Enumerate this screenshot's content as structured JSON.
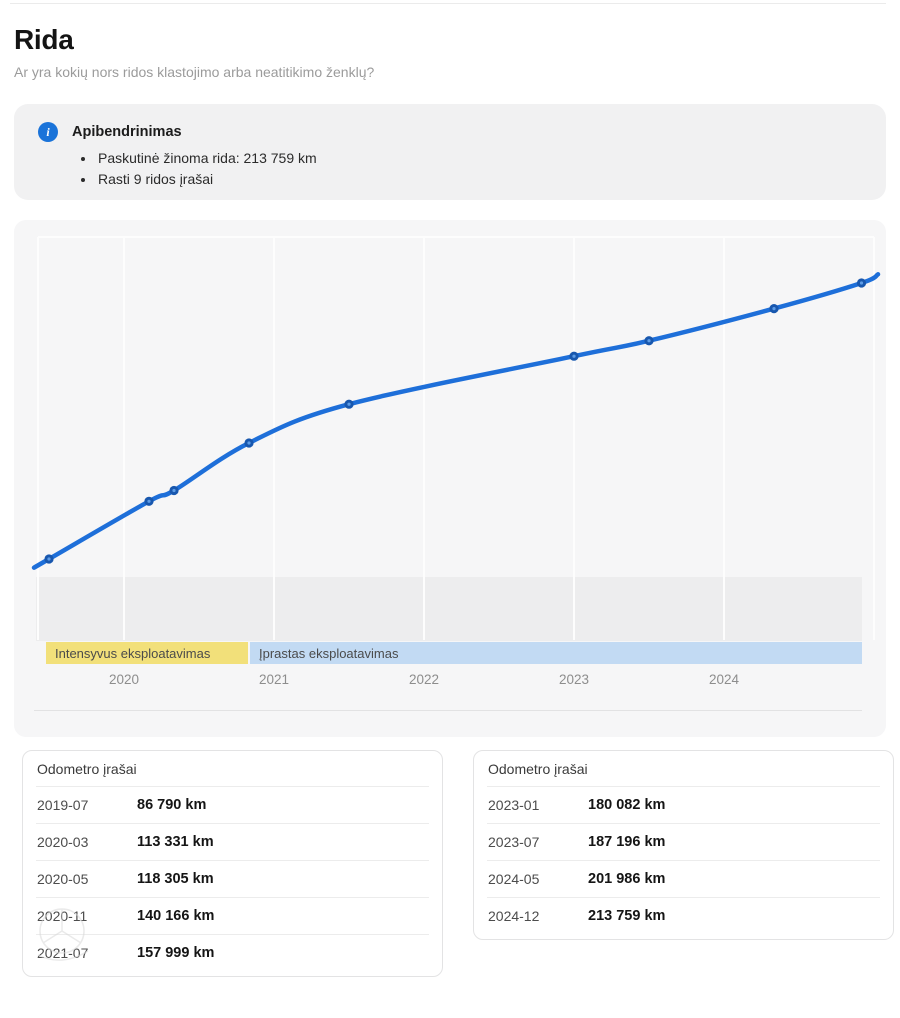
{
  "page": {
    "title": "Rida",
    "subtitle": "Ar yra kokių nors ridos klastojimo arba neatitikimo ženklų?"
  },
  "summary": {
    "title": "Apibendrinimas",
    "items": [
      "Paskutinė žinoma rida: 213 759 km",
      "Rasti 9 ridos įrašai"
    ]
  },
  "chart_data": {
    "type": "line",
    "title": "",
    "xlabel": "",
    "ylabel": "",
    "x": [
      "2019-07",
      "2020-03",
      "2020-05",
      "2020-11",
      "2021-07",
      "2023-01",
      "2023-07",
      "2024-05",
      "2024-12"
    ],
    "values": [
      86790,
      113331,
      118305,
      140166,
      157999,
      180082,
      187196,
      201986,
      213759
    ],
    "unit": "km",
    "xticks": [
      "2020",
      "2021",
      "2022",
      "2023",
      "2024"
    ],
    "xlim_decimal_years": [
      2019.43,
      2025.0
    ],
    "ylim": [
      80000,
      225000
    ],
    "grid": "vertical-only",
    "legend_position": "none",
    "line_color": "#1e6fd9",
    "marker_color": "#1857ae",
    "annotations": [
      {
        "label": "Intensyvus eksploatavimas",
        "color": "#f2e07a",
        "range_x": [
          "2019-06",
          "2020-11"
        ]
      },
      {
        "label": "Įprastas eksploatavimas",
        "color": "#c2daf3",
        "range_x": [
          "2020-11",
          "2025-01"
        ]
      }
    ]
  },
  "tables": [
    {
      "header": "Odometro įrašai",
      "rows": [
        {
          "date": "2019-07",
          "value": "86 790 km"
        },
        {
          "date": "2020-03",
          "value": "113 331 km"
        },
        {
          "date": "2020-05",
          "value": "118 305 km"
        },
        {
          "date": "2020-11",
          "value": "140 166 km"
        },
        {
          "date": "2021-07",
          "value": "157 999 km"
        }
      ]
    },
    {
      "header": "Odometro įrašai",
      "rows": [
        {
          "date": "2023-01",
          "value": "180 082 km"
        },
        {
          "date": "2023-07",
          "value": "187 196 km"
        },
        {
          "date": "2024-05",
          "value": "201 986 km"
        },
        {
          "date": "2024-12",
          "value": "213 759 km"
        }
      ]
    }
  ],
  "colors": {
    "accent_blue": "#1e6fd9",
    "info_icon_blue": "#1a73d9",
    "band_yellow": "#f2e07a",
    "band_blue": "#c2daf3",
    "card_gray": "#f6f6f7",
    "summary_gray": "#f1f1f2"
  }
}
